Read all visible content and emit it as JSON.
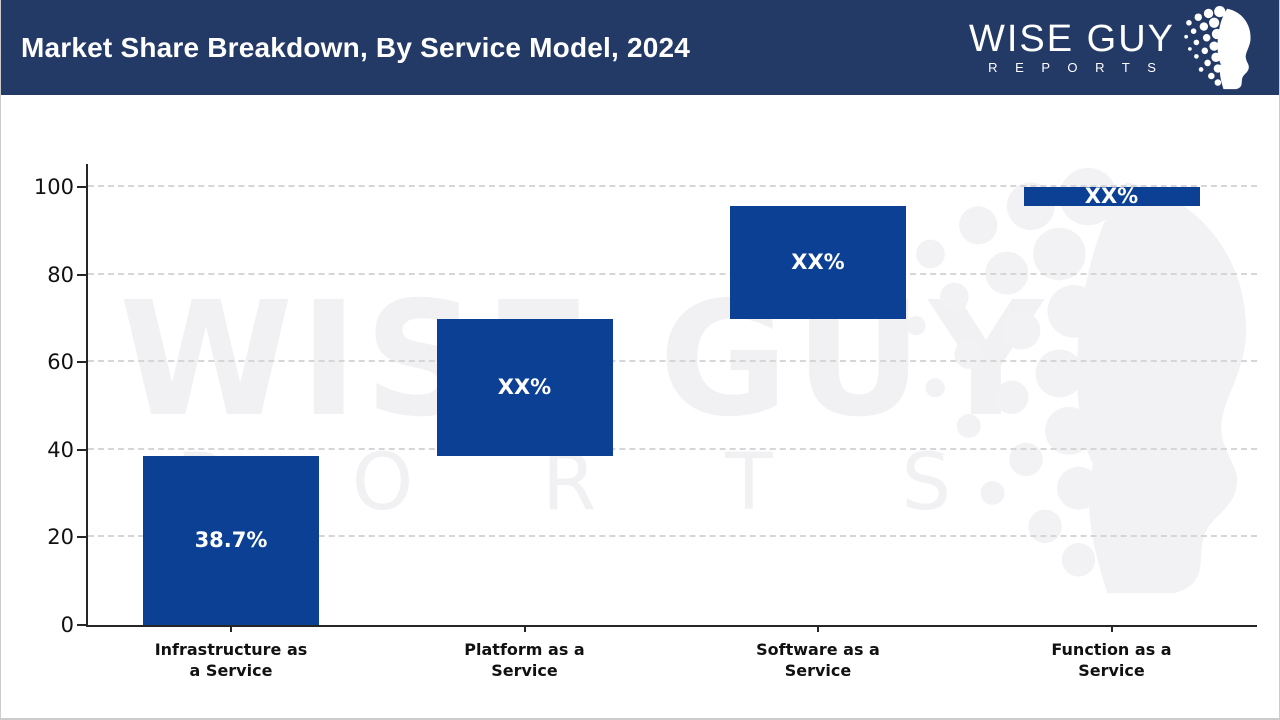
{
  "header": {
    "title": "Market Share Breakdown, By Service Model, 2024",
    "logo": {
      "name": "WISE GUY",
      "subtitle": "R E P O R T S"
    }
  },
  "watermark": {
    "line1": "WISE GUY",
    "line2": "P O R T S"
  },
  "colors": {
    "header_bg": "#233966",
    "bar": "#0b4094",
    "grid": "#d6d6d6",
    "axis": "#262626",
    "watermark": "#f1f1f3",
    "bar_label": "#ffffff"
  },
  "chart_data": {
    "type": "bar",
    "subtype": "waterfall",
    "title": "Market Share Breakdown, By Service Model, 2024",
    "categories": [
      "Infrastructure as\na Service",
      "Platform as a\nService",
      "Software as a\nService",
      "Function as a\nService"
    ],
    "bars": [
      {
        "category": "Infrastructure as a Service",
        "start": 0,
        "end": 38.7,
        "value": 38.7,
        "label": "38.7%"
      },
      {
        "category": "Platform as a Service",
        "start": 38.7,
        "end": 69.9,
        "value": 31.2,
        "label": "XX%"
      },
      {
        "category": "Software as a Service",
        "start": 69.9,
        "end": 95.7,
        "value": 25.8,
        "label": "XX%"
      },
      {
        "category": "Function as a Service",
        "start": 95.7,
        "end": 100,
        "value": 4.3,
        "label": "XX%"
      }
    ],
    "xlabel": "",
    "ylabel": "",
    "ylim": [
      0,
      100
    ],
    "yticks": [
      0,
      20,
      40,
      60,
      80,
      100
    ],
    "grid": "horizontal-dashed",
    "legend": "none"
  }
}
